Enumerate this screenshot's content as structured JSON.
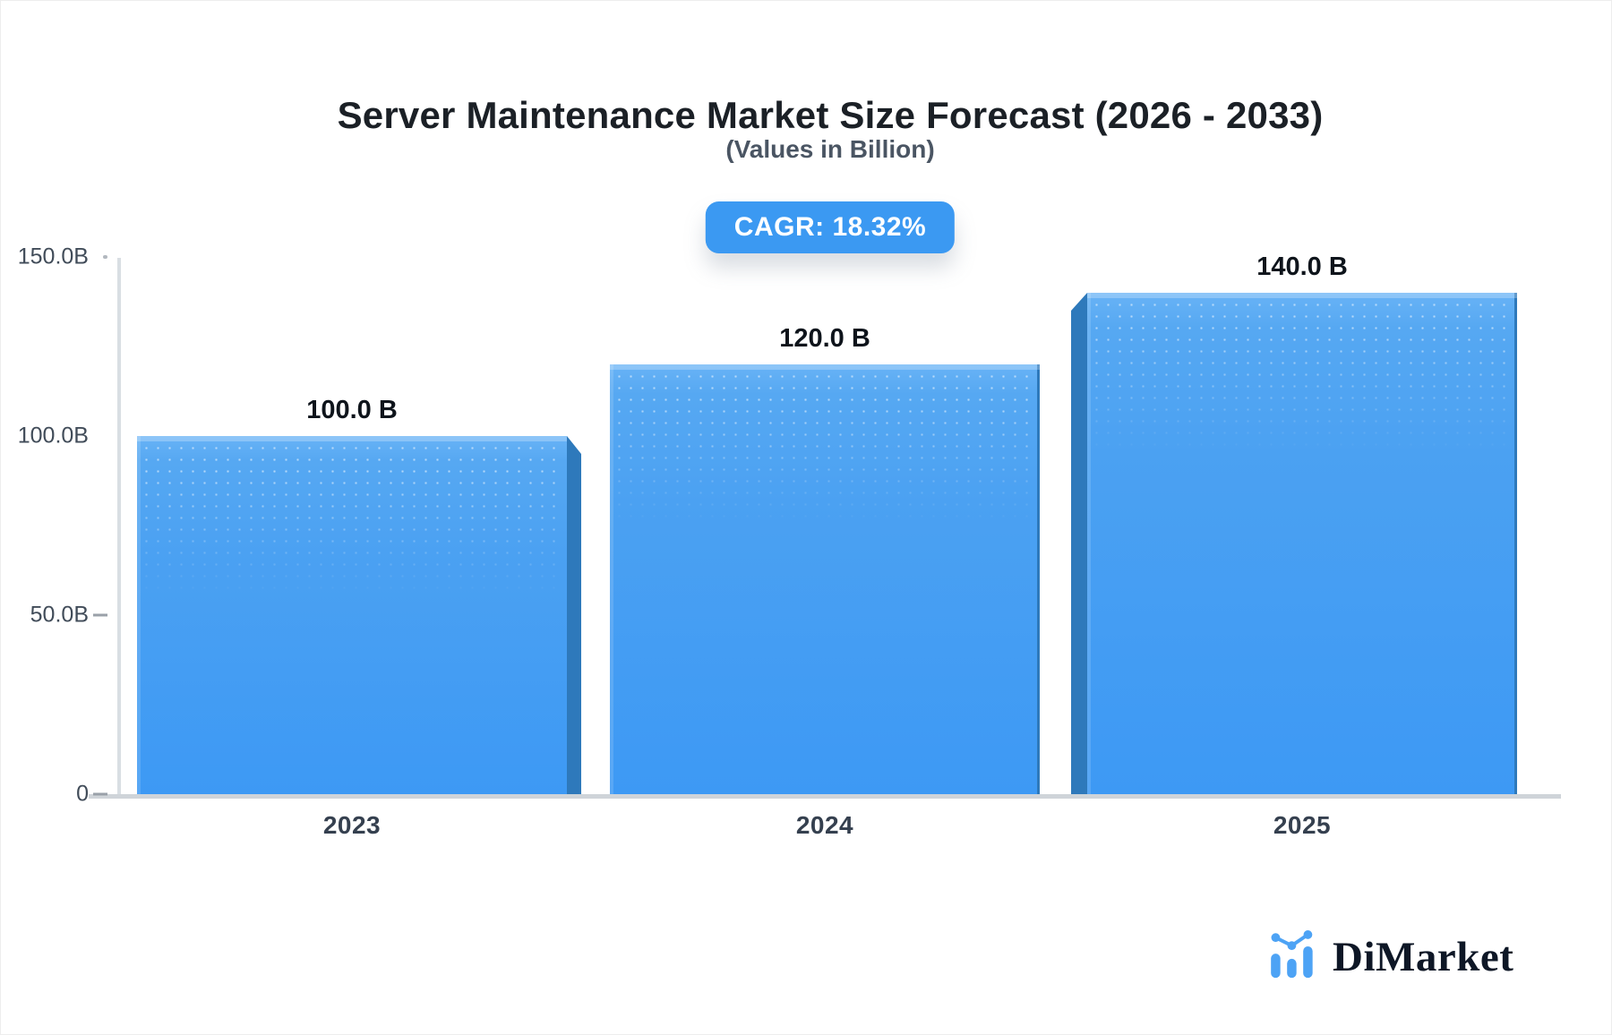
{
  "header": {
    "title": "Server Maintenance Market Size Forecast (2026 - 2033)",
    "subtitle": "(Values in Billion)",
    "cagr_badge": "CAGR: 18.32%"
  },
  "chart_data": {
    "type": "bar",
    "title": "Server Maintenance Market Size Forecast (2026 - 2033)",
    "subtitle": "(Values in Billion)",
    "unit": "Billion",
    "cagr": "18.32%",
    "categories": [
      "2023",
      "2024",
      "2025"
    ],
    "values": [
      100.0,
      120.0,
      140.0
    ],
    "bar_labels": [
      "100.0 B",
      "120.0 B",
      "140.0 B"
    ],
    "ylim": [
      0,
      150
    ],
    "yticks": [
      {
        "value": 0,
        "label": "0",
        "tick": "dash"
      },
      {
        "value": 50,
        "label": "50.0B",
        "tick": "dash"
      },
      {
        "value": 100,
        "label": "100.0B",
        "tick": "none"
      },
      {
        "value": 150,
        "label": "150.0B",
        "tick": "dot"
      }
    ],
    "grid": false,
    "legend": false,
    "bar_3d_sides": [
      "right-panel",
      "right-edge",
      "left-panel right-edge"
    ]
  },
  "colors": {
    "bar_face": "#4aa0f3",
    "bar_side": "#2e79bb",
    "badge_bg": "#3b99f2",
    "badge_text": "#ffffff",
    "axis_line": "#d3d8dd",
    "title_text": "#1b2026",
    "subtitle_text": "#4a5563",
    "tick_label": "#414c59",
    "category_label": "#35404f",
    "logo_blue": "#4da3f5",
    "logo_text_color": "#0e1726"
  },
  "footer": {
    "logo_text": "DiMarket"
  }
}
